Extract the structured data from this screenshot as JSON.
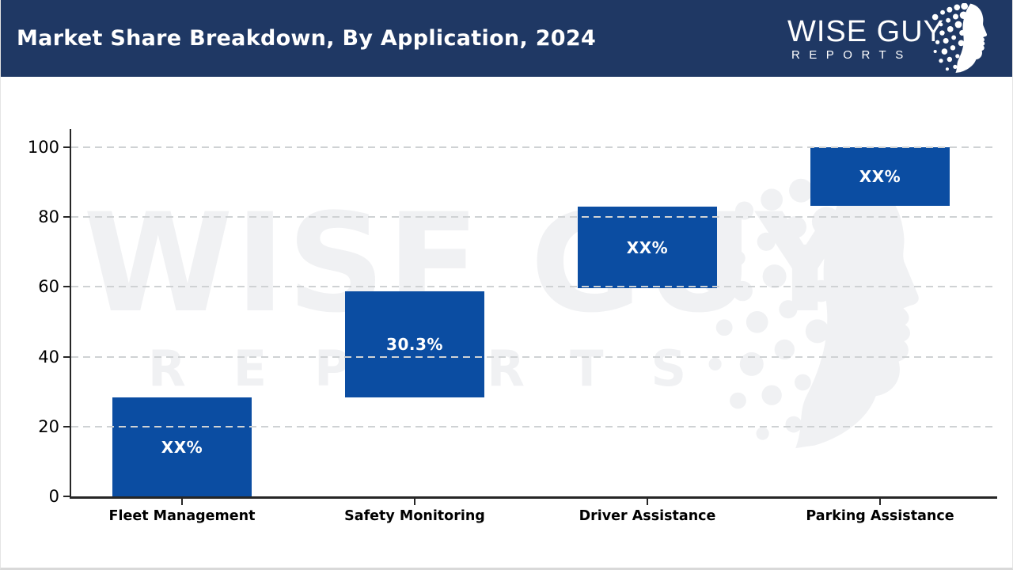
{
  "header": {
    "title": "Market Share Breakdown, By Application, 2024",
    "bg_color": "#1f3864",
    "logo": {
      "line1": "WISE GUY",
      "line2": "REPORTS"
    }
  },
  "watermark": {
    "line1": "WISE GUY",
    "line2": "REPORTS"
  },
  "chart_data": {
    "type": "bar",
    "variant": "floating-waterfall",
    "title": "Market Share Breakdown, By Application, 2024",
    "categories": [
      "Fleet Management",
      "Safety Monitoring",
      "Driver Assistance",
      "Parking Assistance"
    ],
    "series": [
      {
        "name": "Market Share",
        "bars": [
          {
            "category": "Fleet Management",
            "label": "XX%",
            "start": 0,
            "end": 28.3
          },
          {
            "category": "Safety Monitoring",
            "label": "30.3%",
            "start": 28.4,
            "end": 58.7
          },
          {
            "category": "Driver Assistance",
            "label": "XX%",
            "start": 59.7,
            "end": 82.9
          },
          {
            "category": "Parking Assistance",
            "label": "XX%",
            "start": 83.2,
            "end": 100
          }
        ]
      }
    ],
    "xlabel": "",
    "ylabel": "",
    "ylim": [
      0,
      100
    ],
    "yticks": [
      0,
      20,
      40,
      60,
      80,
      100
    ],
    "grid": "horizontal-dashed",
    "legend": "none",
    "bar_color": "#0b4da2",
    "bar_label_color": "#ffffff",
    "axis_color": "#262626",
    "gridline_color": "#cfd2d4"
  }
}
